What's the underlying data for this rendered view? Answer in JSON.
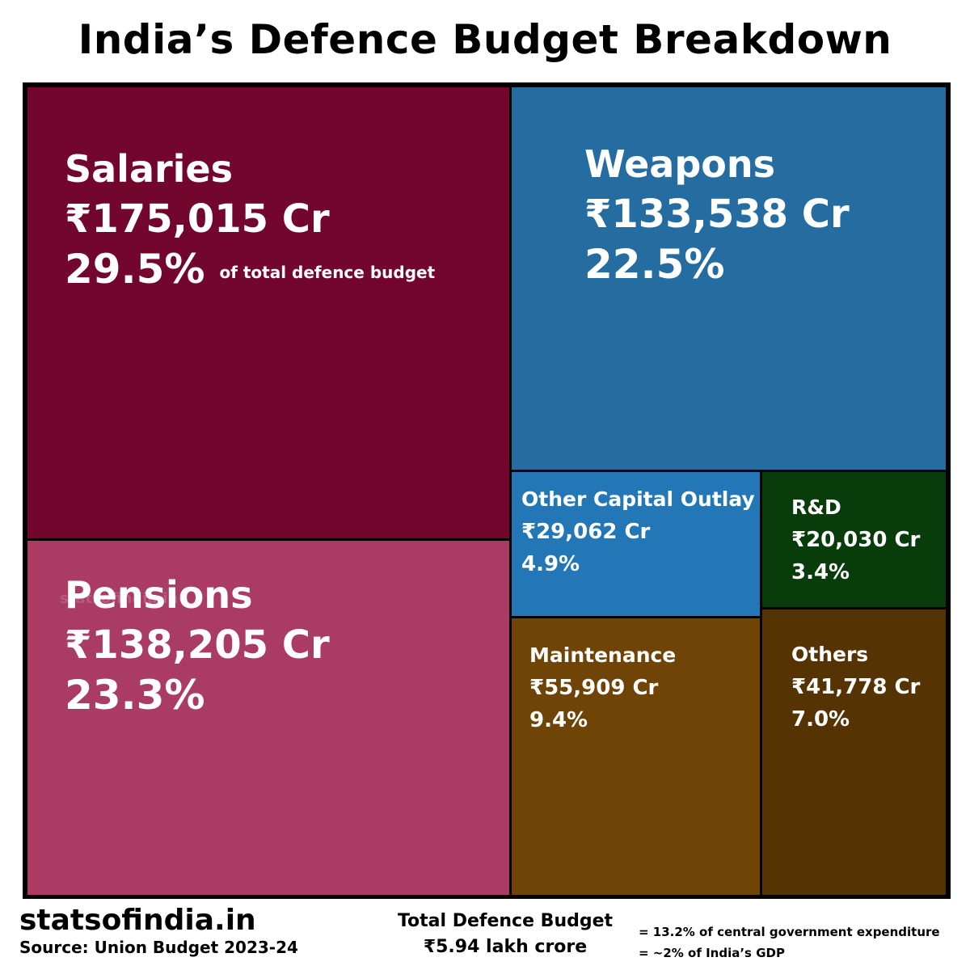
{
  "title": "India’s Defence Budget Breakdown",
  "watermark": "statsofindia.in",
  "chart_data": {
    "type": "treemap",
    "title": "India’s Defence Budget Breakdown",
    "unit": "Cr",
    "items": [
      {
        "key": "salaries",
        "name": "Salaries",
        "value": 175015,
        "value_label": "₹175,015 Cr",
        "percent": 29.5,
        "percent_label": "29.5%",
        "note": "of total defence budget",
        "color": "#73062d"
      },
      {
        "key": "weapons",
        "name": "Weapons",
        "value": 133538,
        "value_label": "₹133,538 Cr",
        "percent": 22.5,
        "percent_label": "22.5%",
        "color": "#256ca0"
      },
      {
        "key": "pensions",
        "name": "Pensions",
        "value": 138205,
        "value_label": "₹138,205 Cr",
        "percent": 23.3,
        "percent_label": "23.3%",
        "color": "#aa3c63"
      },
      {
        "key": "other_capital",
        "name": "Other Capital Outlay",
        "value": 29062,
        "value_label": "₹29,062 Cr",
        "percent": 4.9,
        "percent_label": "4.9%",
        "color": "#2377b6"
      },
      {
        "key": "rnd",
        "name": "R&D",
        "value": 20030,
        "value_label": "₹20,030 Cr",
        "percent": 3.4,
        "percent_label": "3.4%",
        "color": "#083c0a"
      },
      {
        "key": "maintenance",
        "name": "Maintenance",
        "value": 55909,
        "value_label": "₹55,909 Cr",
        "percent": 9.4,
        "percent_label": "9.4%",
        "color": "#6f4406"
      },
      {
        "key": "others",
        "name": "Others",
        "value": 41778,
        "value_label": "₹41,778 Cr",
        "percent": 7.0,
        "percent_label": "7.0%",
        "color": "#553302"
      }
    ]
  },
  "footer": {
    "brand": "statsofindia.in",
    "source": "Source: Union Budget 2023-24",
    "total_label": "Total Defence Budget",
    "total_value": "₹5.94 lakh crore",
    "note_1": "= 13.2% of central government expenditure",
    "note_2": "= ~2% of India’s GDP"
  }
}
